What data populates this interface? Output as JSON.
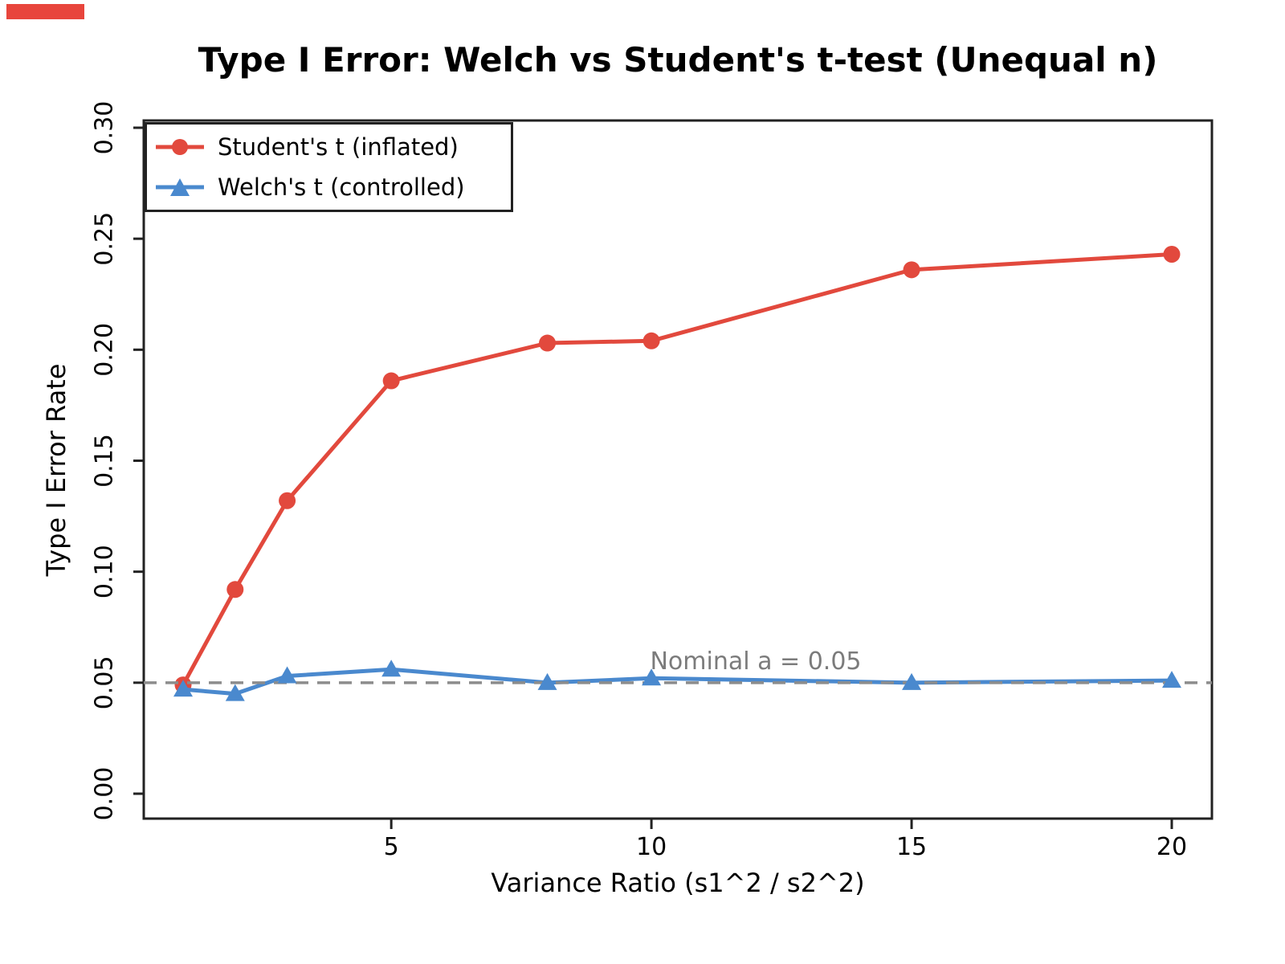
{
  "decorations": {
    "corner_marker_color": "#e8453c"
  },
  "chart_data": {
    "type": "line",
    "title": "Type I Error: Welch vs Student's t-test (Unequal n)",
    "xlabel": "Variance Ratio (s1^2 / s2^2)",
    "ylabel": "Type I Error Rate",
    "x": [
      1,
      2,
      3,
      5,
      8,
      10,
      15,
      20
    ],
    "series": [
      {
        "name": "Student's t (inflated)",
        "color": "#E2493D",
        "marker": "circle",
        "values": [
          0.049,
          0.092,
          0.132,
          0.186,
          0.203,
          0.204,
          0.236,
          0.243
        ]
      },
      {
        "name": "Welch's t (controlled)",
        "color": "#4A89CE",
        "marker": "triangle",
        "values": [
          0.047,
          0.045,
          0.053,
          0.056,
          0.05,
          0.052,
          0.05,
          0.051
        ]
      }
    ],
    "ref_line": {
      "y": 0.05,
      "label": "Nominal a = 0.05",
      "color": "#8C8C8C",
      "label_color": "#7b7b7b",
      "style": "dashed"
    },
    "xlim": [
      0.24,
      20.76
    ],
    "ylim": [
      0,
      0.3
    ],
    "xticks": [
      {
        "v": 5,
        "label": "5"
      },
      {
        "v": 10,
        "label": "10"
      },
      {
        "v": 15,
        "label": "15"
      },
      {
        "v": 20,
        "label": "20"
      }
    ],
    "yticks": [
      {
        "v": 0.0,
        "label": "0.00"
      },
      {
        "v": 0.05,
        "label": "0.05"
      },
      {
        "v": 0.1,
        "label": "0.10"
      },
      {
        "v": 0.15,
        "label": "0.15"
      },
      {
        "v": 0.2,
        "label": "0.20"
      },
      {
        "v": 0.25,
        "label": "0.25"
      },
      {
        "v": 0.3,
        "label": "0.30"
      }
    ],
    "legend_position": "top-left",
    "grid": false,
    "background": "#ffffff"
  }
}
